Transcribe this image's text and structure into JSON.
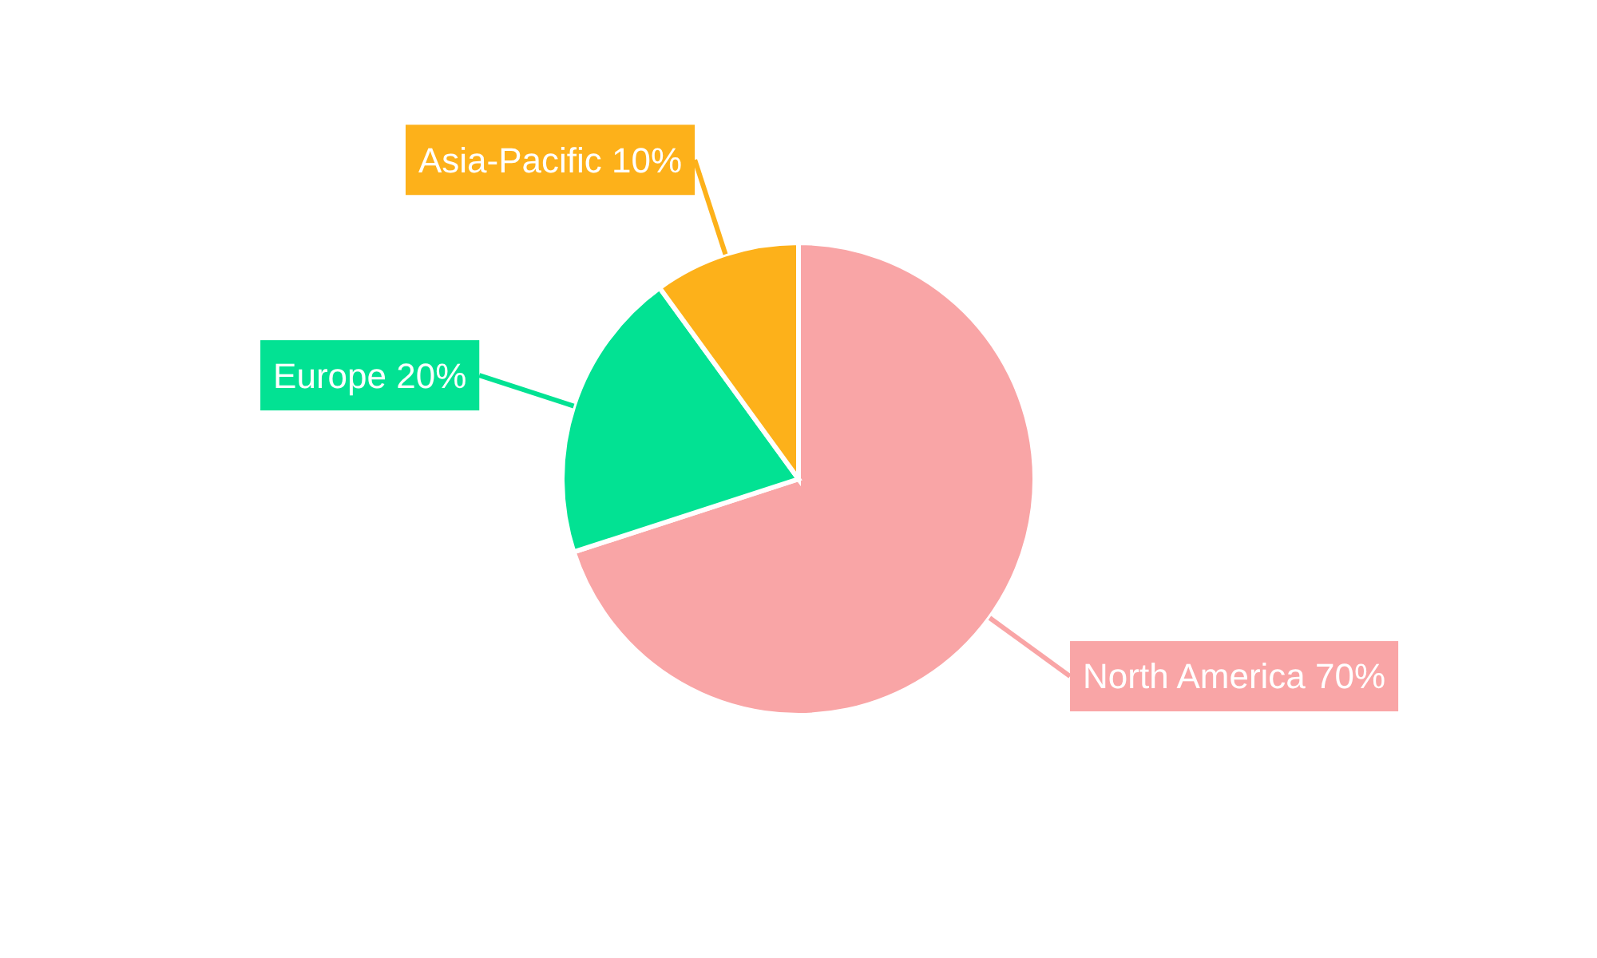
{
  "chart_data": {
    "type": "pie",
    "categories": [
      "North America",
      "Europe",
      "Asia-Pacific"
    ],
    "values": [
      70,
      20,
      10
    ],
    "value_labels": [
      "70%",
      "20%",
      "10%"
    ],
    "colors": [
      "#f9a5a6",
      "#02e293",
      "#fdb11a"
    ]
  }
}
